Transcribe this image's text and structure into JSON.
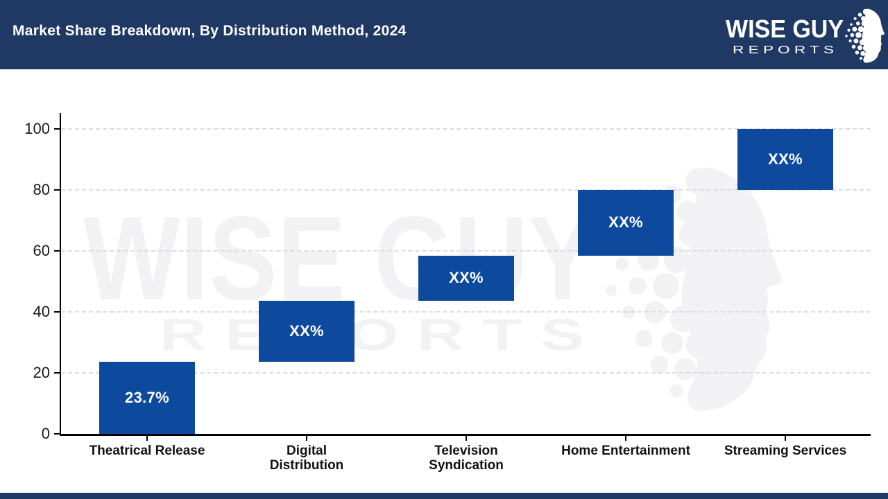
{
  "header": {
    "title": "Market Share Breakdown, By Distribution Method, 2024",
    "logo": {
      "name": "WISE GUY",
      "subname": "R E P O R T S"
    }
  },
  "watermark": {
    "line1": "WISE GUY",
    "line2": "R E P O R T S"
  },
  "colors": {
    "header_bg": "#1f3864",
    "footer_bg": "#1f3864",
    "bar_fill": "#0d4a9e",
    "bar_label_text": "#ffffff",
    "gridline": "#dcdcdc",
    "axis": "#000000",
    "watermark": "#f2f2f4"
  },
  "chart_data": {
    "type": "bar",
    "subtype": "waterfall",
    "title": "Market Share Breakdown, By Distribution Method, 2024",
    "categories": [
      "Theatrical Release",
      "Digital Distribution",
      "Television Syndication",
      "Home Entertainment",
      "Streaming Services"
    ],
    "category_label_lines": [
      [
        "Theatrical Release"
      ],
      [
        "Digital",
        "Distribution"
      ],
      [
        "Television",
        "Syndication"
      ],
      [
        "Home Entertainment"
      ],
      [
        "Streaming Services"
      ]
    ],
    "segments": [
      {
        "category": "Theatrical Release",
        "start": 0,
        "end": 23.7,
        "label": "23.7%"
      },
      {
        "category": "Digital Distribution",
        "start": 23.7,
        "end": 43.6,
        "label": "XX%"
      },
      {
        "category": "Television Syndication",
        "start": 43.6,
        "end": 58.5,
        "label": "XX%"
      },
      {
        "category": "Home Entertainment",
        "start": 58.5,
        "end": 80,
        "label": "XX%"
      },
      {
        "category": "Streaming Services",
        "start": 80,
        "end": 100,
        "label": "XX%"
      }
    ],
    "xlabel": "",
    "ylabel": "",
    "ylim": [
      0,
      105
    ],
    "yticks": [
      0,
      20,
      40,
      60,
      80,
      100
    ],
    "grid": "horizontal-dashed",
    "legend": "none"
  }
}
